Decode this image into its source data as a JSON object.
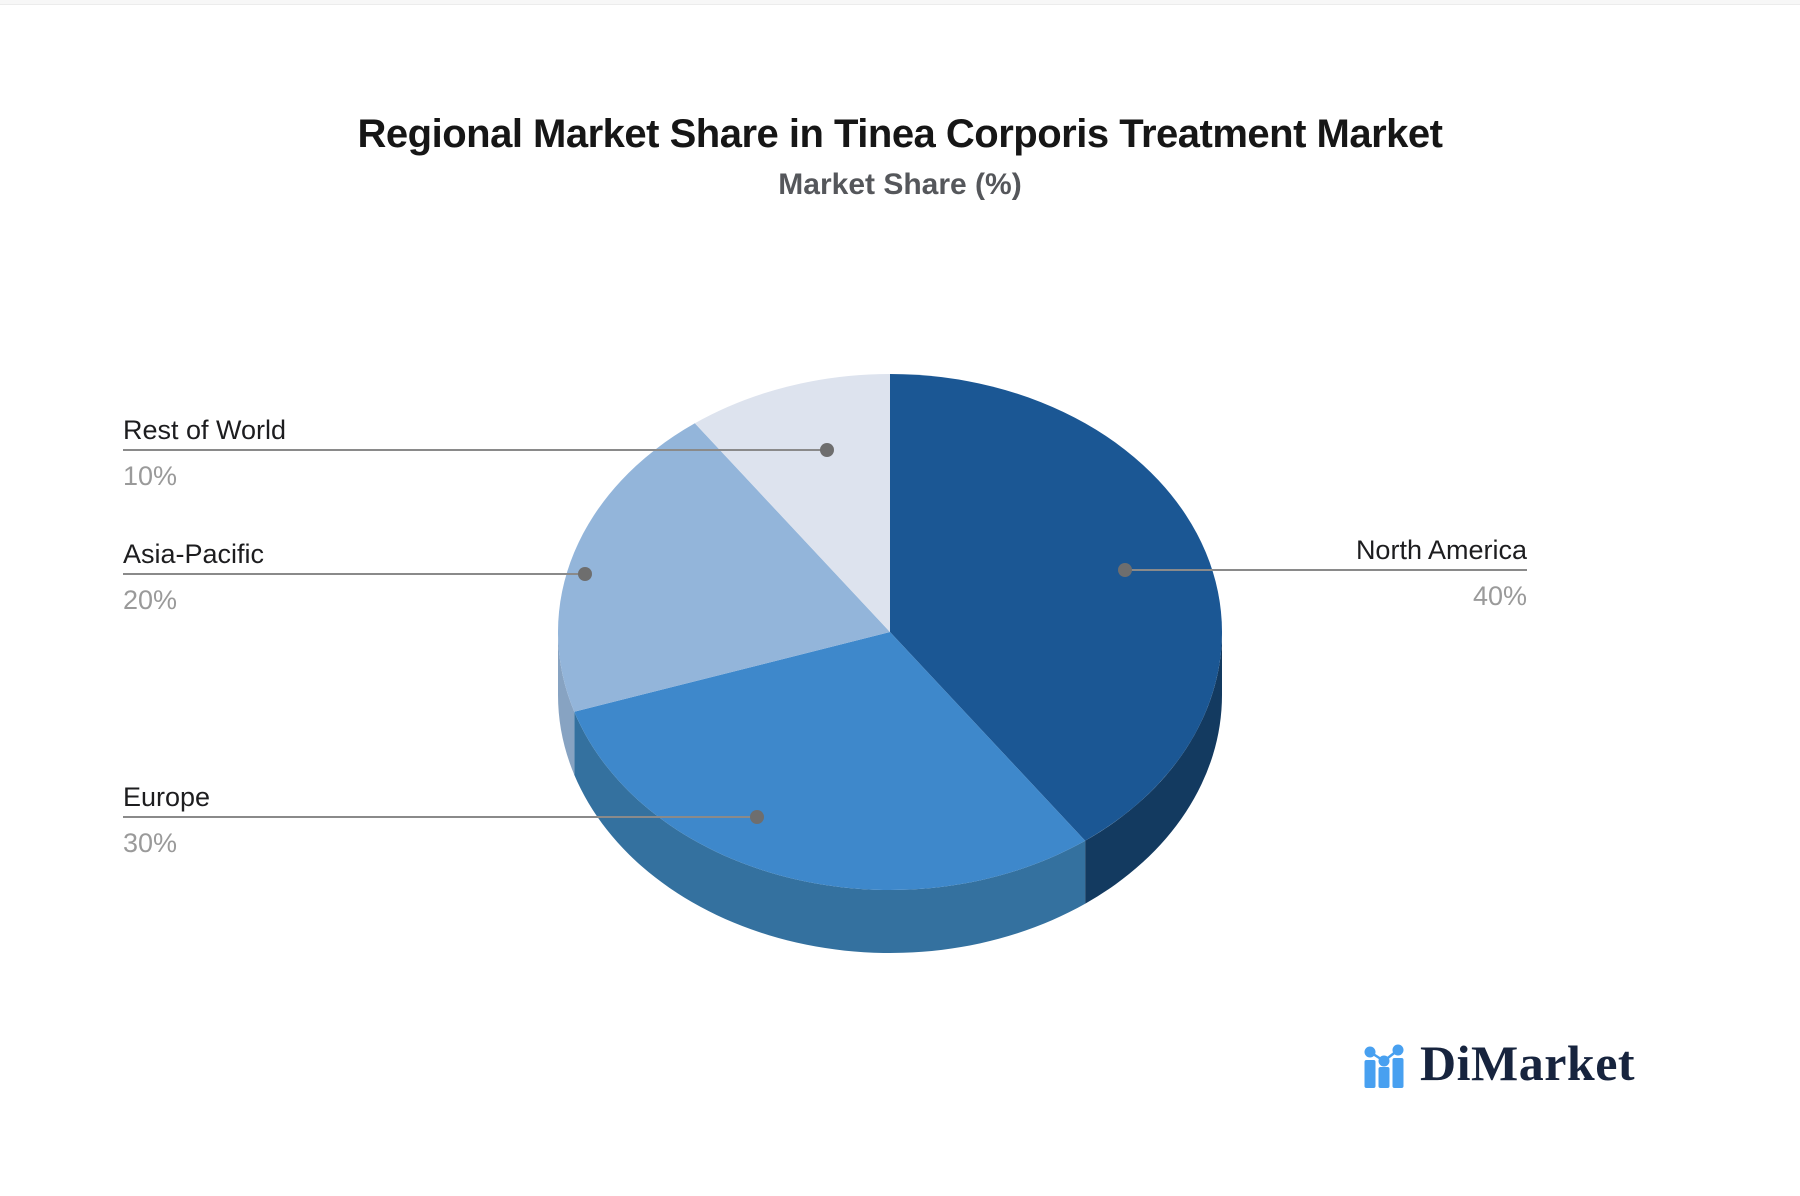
{
  "chart_data": {
    "type": "pie",
    "style": "3d",
    "title": "Regional Market Share in Tinea Corporis Treatment Market",
    "subtitle": "Market Share (%)",
    "unit": "%",
    "start_angle": "top",
    "direction": "clockwise",
    "legend_position": "leader-labels",
    "slices": [
      {
        "label": "North America",
        "value": 40,
        "pct_label": "40%",
        "color": "#1b5794",
        "side_color": "#133a60"
      },
      {
        "label": "Europe",
        "value": 30,
        "pct_label": "30%",
        "color": "#3e88cb",
        "side_color": "#34719f"
      },
      {
        "label": "Asia-Pacific",
        "value": 20,
        "pct_label": "20%",
        "color": "#93b5da",
        "side_color": "#87a3c2"
      },
      {
        "label": "Rest of World",
        "value": 10,
        "pct_label": "10%",
        "color": "#dde3ee",
        "side_color": "#b9c4d4"
      }
    ]
  },
  "branding": {
    "logo_text": "DiMarket",
    "logo_icon_color": "#48a0f0",
    "logo_text_color": "#17243e"
  }
}
